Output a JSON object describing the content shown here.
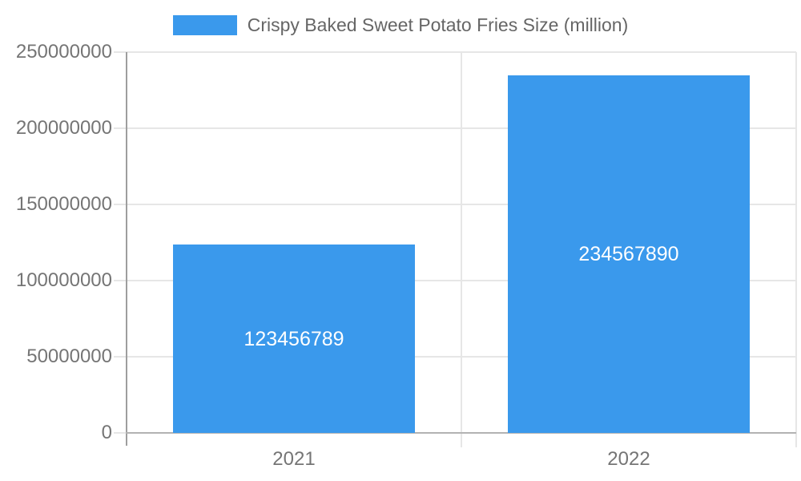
{
  "legend": {
    "label": "Crispy Baked Sweet Potato Fries Size (million)"
  },
  "chart_data": {
    "type": "bar",
    "title": "Crispy Baked Sweet Potato Fries Size (million)",
    "categories": [
      "2021",
      "2022"
    ],
    "series": [
      {
        "name": "Crispy Baked Sweet Potato Fries Size (million)",
        "values": [
          123456789,
          234567890
        ]
      }
    ],
    "data_labels": [
      "123456789",
      "234567890"
    ],
    "y_tick_labels": [
      "0",
      "50000000",
      "100000000",
      "150000000",
      "200000000",
      "250000000"
    ],
    "y_ticks": [
      0,
      50000000,
      100000000,
      150000000,
      200000000,
      250000000
    ],
    "ylim": [
      0,
      250000000
    ],
    "grid": true,
    "legend_position": "top",
    "colors": {
      "bar": "#3A99EC",
      "data_label": "#FFFFFF",
      "axis_text": "#757575",
      "legend_text": "#666666",
      "gridline": "#E6E6E6",
      "y_axis_line": "#9E9E9E",
      "x_axis_line": "#B3B3B3"
    }
  }
}
